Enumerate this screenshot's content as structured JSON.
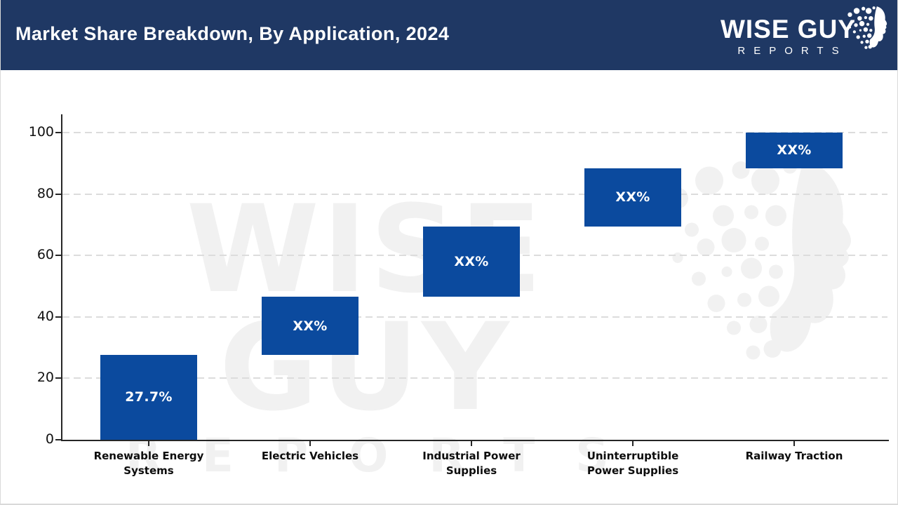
{
  "header": {
    "title": "Market Share Breakdown, By Application, 2024",
    "logo": {
      "line1": "WISE GUY",
      "line2": "REPORTS",
      "icon": "dotted-head-profile-icon"
    }
  },
  "watermark": {
    "line1": "WISE GUY",
    "line2": "REPORTS"
  },
  "chart_data": {
    "type": "bar",
    "subtype": "floating-segment-waterfall",
    "title": "Market Share Breakdown, By Application, 2024",
    "categories": [
      "Renewable Energy Systems",
      "Electric Vehicles",
      "Industrial Power Supplies",
      "Uninterruptible Power Supplies",
      "Railway Traction"
    ],
    "category_label_lines": [
      [
        "Renewable Energy",
        "Systems"
      ],
      [
        "Electric Vehicles"
      ],
      [
        "Industrial Power",
        "Supplies"
      ],
      [
        "Uninterruptible",
        "Power Supplies"
      ],
      [
        "Railway Traction"
      ]
    ],
    "segments": [
      {
        "category": "Renewable Energy Systems",
        "start": 0,
        "end": 27.7,
        "label": "27.7%"
      },
      {
        "category": "Electric Vehicles",
        "start": 27.7,
        "end": 46.5,
        "label": "XX%"
      },
      {
        "category": "Industrial Power Supplies",
        "start": 46.5,
        "end": 69.5,
        "label": "XX%"
      },
      {
        "category": "Uninterruptible Power Supplies",
        "start": 69.5,
        "end": 88.4,
        "label": "XX%"
      },
      {
        "category": "Railway Traction",
        "start": 88.4,
        "end": 100,
        "label": "XX%"
      }
    ],
    "values_delta": [
      27.7,
      18.8,
      23.0,
      18.9,
      11.6
    ],
    "xlabel": "",
    "ylabel": "",
    "ylim": [
      0,
      100
    ],
    "y_ticks": [
      0,
      20,
      40,
      60,
      80,
      100
    ],
    "grid": "horizontal-dashed",
    "legend": "none",
    "bar_color": "#0b4a9e",
    "bar_label_color": "#ffffff"
  },
  "colors": {
    "header_bg": "#1f3864",
    "bar": "#0b4a9e",
    "grid": "#dcdcdc",
    "axis": "#262626",
    "background": "#ffffff",
    "border": "#d9d9d9",
    "watermark": "#f1f1f1"
  }
}
